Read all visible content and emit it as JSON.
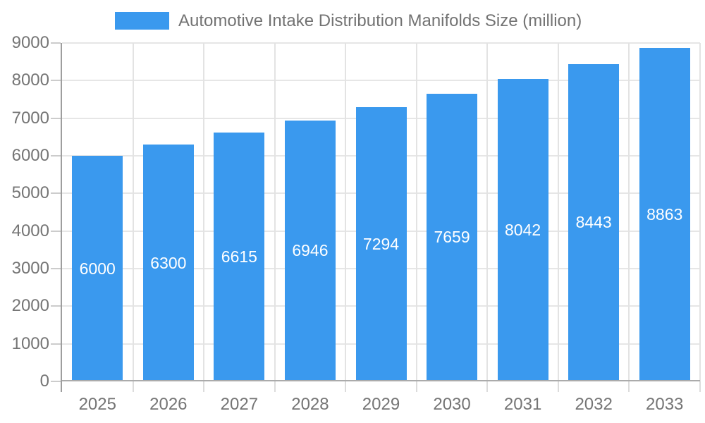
{
  "chart_data": {
    "type": "bar",
    "title": "Automotive Intake Distribution Manifolds Size (million)",
    "legend": "Automotive Intake Distribution Manifolds Size (million)",
    "legend_position": "top",
    "categories": [
      "2025",
      "2026",
      "2027",
      "2028",
      "2029",
      "2030",
      "2031",
      "2032",
      "2033"
    ],
    "values": [
      6000,
      6300,
      6615,
      6946,
      7294,
      7659,
      8042,
      8443,
      8863
    ],
    "xlabel": "",
    "ylabel": "",
    "ylim": [
      0,
      9000
    ],
    "ytick_step": 1000,
    "grid": true,
    "bar_color": "#3a99ee",
    "value_label_color": "#ffffff",
    "axis_label_color": "#757575"
  }
}
